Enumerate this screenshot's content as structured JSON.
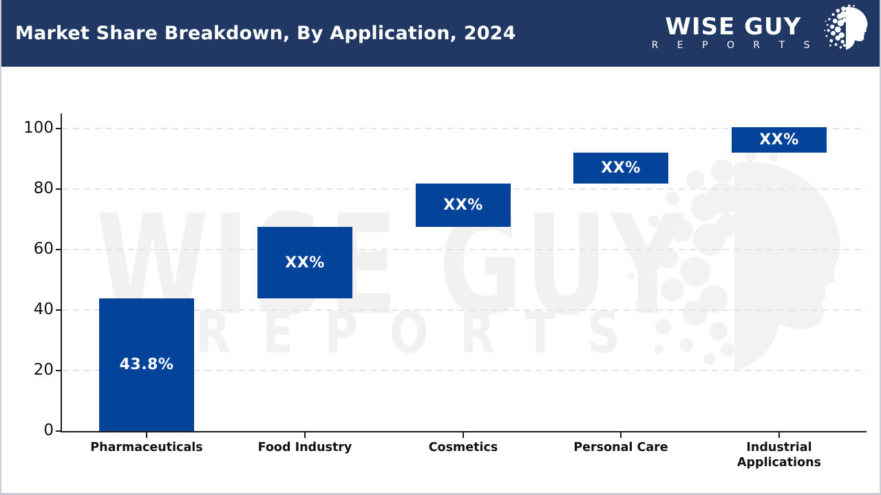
{
  "header": {
    "title": "Market Share Breakdown, By Application, 2024",
    "logo": {
      "line1": "WISE GUY",
      "line2": "R E P O R T S"
    }
  },
  "watermark": {
    "line1": "WISE GUY",
    "line2": "REPORTS"
  },
  "chart_data": {
    "type": "bar",
    "subtype": "waterfall-stacked-progression",
    "title": "Market Share Breakdown, By Application, 2024",
    "categories": [
      "Pharmaceuticals",
      "Food Industry",
      "Cosmetics",
      "Personal Care",
      "Industrial Applications"
    ],
    "bars": [
      {
        "category": "Pharmaceuticals",
        "start": 0,
        "end": 43.8,
        "label": "43.8%"
      },
      {
        "category": "Food Industry",
        "start": 43.8,
        "end": 67.4,
        "label": "XX%"
      },
      {
        "category": "Cosmetics",
        "start": 67.4,
        "end": 81.8,
        "label": "XX%"
      },
      {
        "category": "Personal Care",
        "start": 81.8,
        "end": 92.0,
        "label": "XX%"
      },
      {
        "category": "Industrial Applications",
        "start": 92.0,
        "end": 100.5,
        "label": "XX%"
      }
    ],
    "yticks": [
      0,
      20,
      40,
      60,
      80,
      100
    ],
    "ylim": [
      0,
      105
    ],
    "xlabel": "",
    "ylabel": "",
    "grid": "horizontal-dashed",
    "legend": "none",
    "bar_color": "#04439a",
    "bar_label_color": "#ffffff",
    "axis_color": "#1a1a1a",
    "gridline_color": "#e4e4e4",
    "header_color": "#213864"
  }
}
